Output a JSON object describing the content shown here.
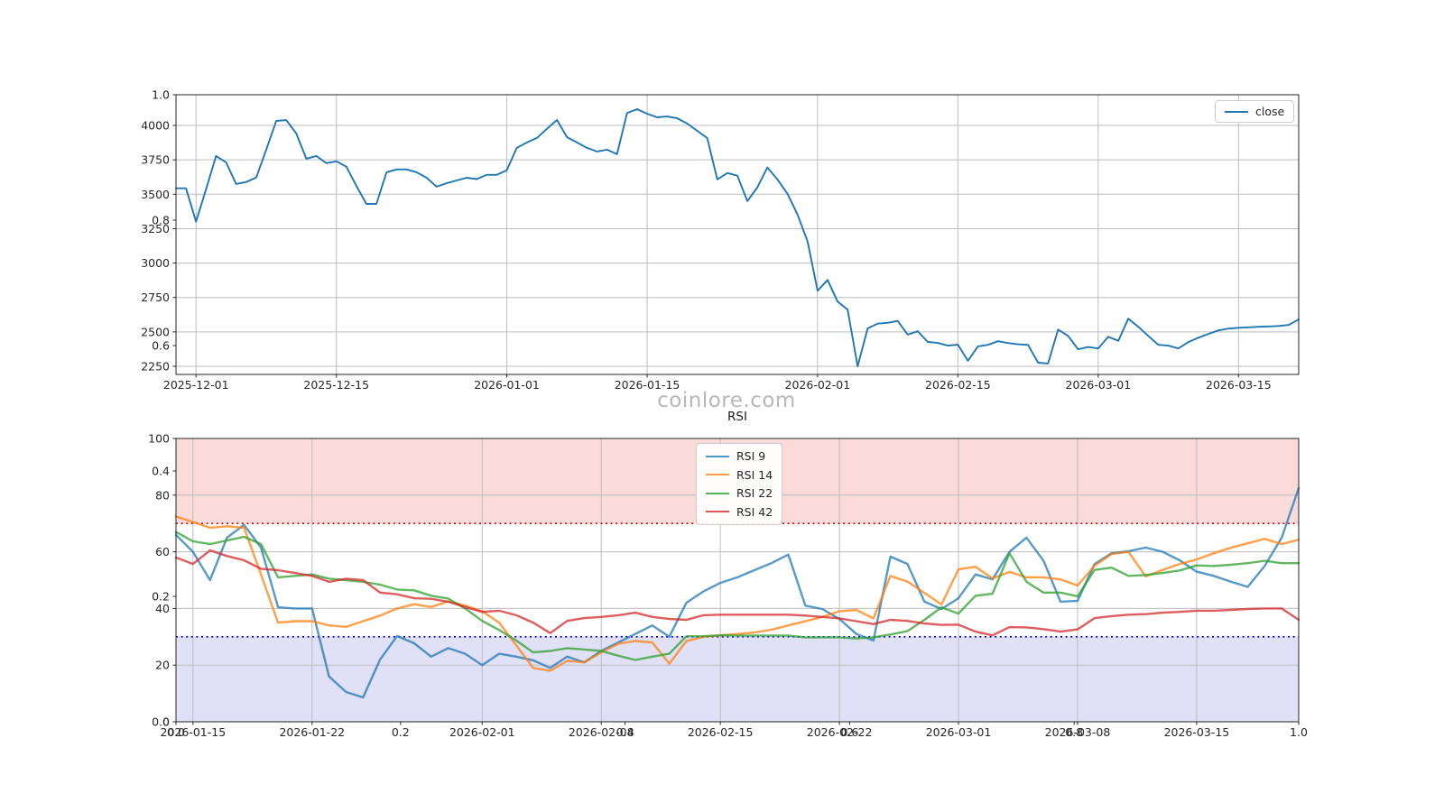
{
  "watermark": "coinlore.com",
  "colors": {
    "close": "#1f77b4",
    "rsi9": "#1f77b4",
    "rsi14": "#ff7f0e",
    "rsi22": "#2ca02c",
    "rsi42": "#d62728",
    "grid": "#bdbdbd",
    "spine": "#262626",
    "tick_label": "#262626",
    "overbought_fill": "#fbdada",
    "oversold_fill": "#e0e0f6",
    "overbought_line": "#e00000",
    "oversold_line": "#0000dd"
  },
  "overlay_axis": {
    "y_labels": [
      "1.0",
      "0.8",
      "0.6",
      "0.4",
      "0.2",
      "0.0"
    ],
    "x_labels": [
      "0.0",
      "0.2",
      "0.4",
      "0.6",
      "0.8",
      "1.0"
    ]
  },
  "chart_data": [
    {
      "type": "line",
      "title": "",
      "start_date": "2025-11-29",
      "end_date": "2026-03-21",
      "x_span_days": 112,
      "x_ticks": [
        {
          "label": "2025-12-01",
          "day": 2
        },
        {
          "label": "2025-12-15",
          "day": 16
        },
        {
          "label": "2026-01-01",
          "day": 33
        },
        {
          "label": "2026-01-15",
          "day": 47
        },
        {
          "label": "2026-02-01",
          "day": 64
        },
        {
          "label": "2026-02-15",
          "day": 78
        },
        {
          "label": "2026-03-01",
          "day": 92
        },
        {
          "label": "2026-03-15",
          "day": 106
        }
      ],
      "ylim": [
        2191,
        4223
      ],
      "y_ticks": [
        2250,
        2500,
        2750,
        3000,
        3250,
        3500,
        3750,
        4000
      ],
      "grid": true,
      "legend_position": "upper right",
      "series": [
        {
          "name": "close",
          "values": [
            3543,
            3543,
            3301,
            3536,
            3778,
            3732,
            3575,
            3589,
            3621,
            3824,
            4033,
            4039,
            3941,
            3758,
            3778,
            3726,
            3739,
            3700,
            3560,
            3430,
            3430,
            3660,
            3680,
            3680,
            3660,
            3620,
            3555,
            3580,
            3600,
            3620,
            3610,
            3641,
            3641,
            3674,
            3837,
            3876,
            3909,
            3975,
            4040,
            3915,
            3876,
            3837,
            3811,
            3824,
            3791,
            4090,
            4118,
            4085,
            4059,
            4065,
            4052,
            4013,
            3961,
            3908,
            3608,
            3654,
            3635,
            3450,
            3550,
            3695,
            3608,
            3504,
            3354,
            3158,
            2799,
            2877,
            2720,
            2661,
            2250,
            2525,
            2560,
            2566,
            2580,
            2480,
            2505,
            2427,
            2420,
            2400,
            2407,
            2290,
            2395,
            2406,
            2432,
            2419,
            2410,
            2406,
            2276,
            2270,
            2517,
            2471,
            2373,
            2390,
            2380,
            2465,
            2435,
            2596,
            2537,
            2470,
            2406,
            2400,
            2380,
            2426,
            2458,
            2485,
            2511,
            2524,
            2530,
            2533,
            2537,
            2540,
            2543,
            2550,
            2590
          ]
        }
      ]
    },
    {
      "type": "line",
      "title": "RSI",
      "start_date": "2026-01-14",
      "end_date": "2026-03-21",
      "x_span_days": 66,
      "x_ticks": [
        {
          "label": "2026-01-15",
          "day": 1
        },
        {
          "label": "2026-01-22",
          "day": 8
        },
        {
          "label": "2026-02-01",
          "day": 18
        },
        {
          "label": "2026-02-08",
          "day": 25
        },
        {
          "label": "2026-02-15",
          "day": 32
        },
        {
          "label": "2026-02-22",
          "day": 39
        },
        {
          "label": "2026-03-01",
          "day": 46
        },
        {
          "label": "2026-03-08",
          "day": 53
        },
        {
          "label": "2026-03-15",
          "day": 60
        }
      ],
      "ylim": [
        0,
        100
      ],
      "y_ticks": [
        0,
        20,
        40,
        60,
        80,
        100
      ],
      "overbought_level": 70,
      "oversold_level": 30,
      "grid": true,
      "legend_position": "upper center-left",
      "series": [
        {
          "name": "RSI 9",
          "values": [
            66,
            60,
            50,
            65,
            69.5,
            61.5,
            40.4,
            40,
            40,
            16,
            10.5,
            8.6,
            22,
            30.3,
            27.7,
            23,
            26,
            24,
            20,
            24,
            23,
            21.7,
            19,
            23,
            21,
            25,
            28,
            31,
            34,
            30,
            42,
            46,
            49,
            51,
            53.5,
            56,
            59,
            41,
            39.8,
            36.3,
            31,
            28.7,
            58.3,
            55.7,
            42.4,
            39.8,
            43.6,
            52,
            50.3,
            60,
            65,
            56.8,
            42.4,
            42.7,
            55.7,
            59.5,
            60.2,
            61.5,
            60,
            57,
            53,
            51.5,
            49.5,
            47.6,
            55,
            65,
            82.5
          ]
        },
        {
          "name": "RSI 14",
          "values": [
            72.5,
            70.5,
            68.5,
            69,
            68.5,
            52,
            35,
            35.5,
            35.5,
            34,
            33.5,
            35.5,
            37.5,
            40,
            41.5,
            40.5,
            42.5,
            41,
            39,
            35,
            27,
            19,
            18,
            21.5,
            21,
            24.5,
            27.5,
            28.5,
            28,
            20.5,
            28.5,
            30,
            30.5,
            31,
            31.5,
            32.5,
            34,
            35.5,
            37,
            39,
            39.5,
            36.5,
            51.5,
            49.5,
            45.5,
            41.4,
            53.8,
            54.7,
            50.6,
            52.9,
            51,
            51,
            50.3,
            48.1,
            55.1,
            59.2,
            60,
            51.3,
            53.6,
            55.7,
            57.3,
            59.5,
            61.4,
            63,
            64.6,
            62.7,
            64.3
          ]
        },
        {
          "name": "RSI 22",
          "values": [
            67,
            63.7,
            62.7,
            64,
            65.3,
            62.7,
            51,
            51.5,
            52,
            50.5,
            50,
            49.4,
            48.4,
            46.7,
            46.4,
            44.5,
            43.5,
            40,
            35.6,
            32.4,
            28.7,
            24.5,
            25,
            26,
            25.5,
            25,
            23.3,
            21.8,
            23,
            24,
            30.2,
            30.2,
            30.5,
            30.4,
            30.4,
            30.4,
            30.4,
            29.8,
            29.8,
            29.8,
            29.4,
            29.8,
            30.8,
            32,
            36,
            40.4,
            38.2,
            44.5,
            45.2,
            59.5,
            49.4,
            45.6,
            45.6,
            44.3,
            53.6,
            54.4,
            51.5,
            51.8,
            52.5,
            53.4,
            55.2,
            55,
            55.4,
            56,
            56.8,
            56,
            56
          ]
        },
        {
          "name": "RSI 42",
          "values": [
            58,
            55.7,
            60.5,
            58.5,
            57,
            54,
            53.5,
            52.5,
            51.5,
            49.4,
            50.5,
            50,
            45.6,
            45,
            43.6,
            43.4,
            42.4,
            40.5,
            38.8,
            39.2,
            37.6,
            35,
            31.3,
            35.6,
            36.6,
            37,
            37.6,
            38.5,
            37,
            36.3,
            36,
            37.6,
            37.8,
            37.8,
            37.8,
            37.8,
            37.8,
            37.5,
            37,
            36.5,
            35.5,
            34.5,
            36,
            35.6,
            34.7,
            34.2,
            34.3,
            31.8,
            30.5,
            33.4,
            33.3,
            32.7,
            31.8,
            32.6,
            36.6,
            37.3,
            37.8,
            38,
            38.5,
            38.8,
            39.2,
            39.2,
            39.5,
            39.8,
            40,
            40,
            36
          ]
        }
      ]
    }
  ]
}
